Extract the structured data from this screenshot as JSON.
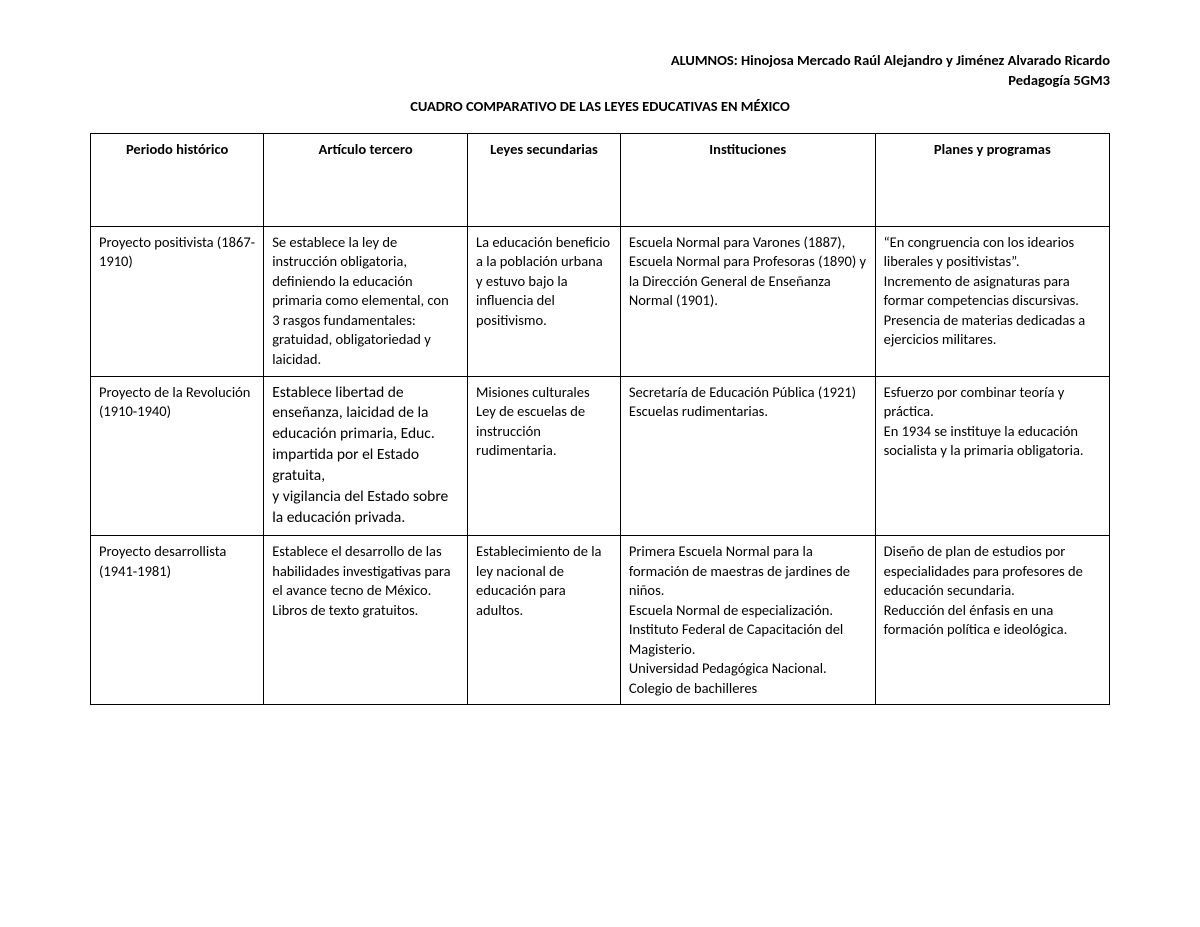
{
  "header": {
    "line1": "ALUMNOS: Hinojosa Mercado Raúl Alejandro y Jiménez Alvarado Ricardo",
    "line2": "Pedagogía 5GM3"
  },
  "title": "CUADRO COMPARATIVO DE LAS LEYES EDUCATIVAS EN MÉXICO",
  "columns": [
    "Periodo histórico",
    "Artículo tercero",
    "Leyes secundarias",
    "Instituciones",
    "Planes y programas"
  ],
  "rows": [
    {
      "periodo": "Proyecto positivista (1867-1910)",
      "articulo": "Se establece la ley de instrucción obligatoria, definiendo la educación primaria como elemental, con 3 rasgos fundamentales: gratuidad, obligatoriedad y laicidad.",
      "leyes": "La educación beneficio a la población urbana y estuvo bajo la influencia del positivismo.",
      "instituciones": "Escuela Normal para Varones (1887), Escuela Normal para Profesoras (1890) y la Dirección General de Enseñanza Normal (1901).",
      "planes": "“En congruencia con los idearios liberales y positivistas”.\nIncremento de asignaturas para formar competencias discursivas.\nPresencia de materias dedicadas a ejercicios militares."
    },
    {
      "periodo": "Proyecto de la Revolución (1910-1940)",
      "articulo": "Establece  libertad de enseñanza, laicidad de la educación primaria, Educ. impartida por el Estado gratuita,\n y vigilancia del Estado sobre la educación privada.",
      "articulo_alt_font": true,
      "leyes": "Misiones culturales\nLey de escuelas de instrucción rudimentaria.",
      "instituciones": "Secretaría de Educación Pública (1921)\nEscuelas rudimentarias.",
      "planes": "Esfuerzo por combinar teoría y práctica.\nEn 1934 se instituye la educación socialista y la primaria obligatoria."
    },
    {
      "periodo": "Proyecto desarrollista (1941-1981)",
      "articulo": "Establece el desarrollo de las habilidades investigativas para el avance tecno de México.\nLibros de texto gratuitos.",
      "leyes": "Establecimiento de la ley nacional de educación para adultos.",
      "instituciones": "Primera Escuela Normal para la formación de maestras de jardines de niños.\nEscuela Normal de especialización.\nInstituto Federal de Capacitación del Magisterio.\nUniversidad Pedagógica Nacional.\nColegio de bachilleres",
      "planes": "Diseño de plan de estudios por especialidades para profesores de educación secundaria.\nReducción del énfasis en una formación política e ideológica."
    }
  ]
}
